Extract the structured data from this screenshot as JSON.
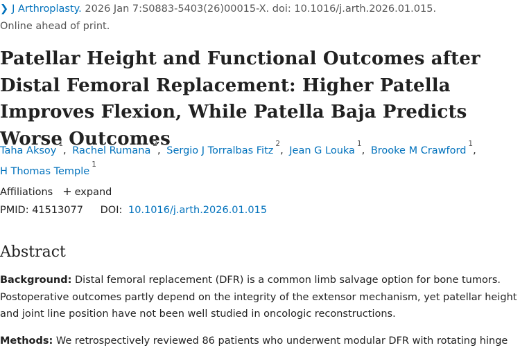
{
  "citation": {
    "journal": "J Arthroplasty.",
    "details": "2026 Jan 7:S0883-5403(26)00015-X. doi: 10.1016/j.arth.2026.01.015.",
    "status": "Online ahead of print."
  },
  "title": "Patellar Height and Functional Outcomes after Distal Femoral Replacement: Higher Patella Improves Flexion, While Patella Baja Predicts Worse Outcomes",
  "authors": [
    {
      "name": "Taha Aksoy",
      "aff": "1"
    },
    {
      "name": "Rachel Rumana",
      "aff": "2"
    },
    {
      "name": "Sergio J Torralbas Fitz",
      "aff": "2"
    },
    {
      "name": "Jean G Louka",
      "aff": "1"
    },
    {
      "name": "Brooke M Crawford",
      "aff": "1"
    },
    {
      "name": "H Thomas Temple",
      "aff": "1"
    }
  ],
  "affiliations": {
    "label": "Affiliations",
    "expand": "expand"
  },
  "ids": {
    "pmid_label": "PMID:",
    "pmid": "41513077",
    "doi_label": "DOI:",
    "doi": "10.1016/j.arth.2026.01.015"
  },
  "abstract": {
    "heading": "Abstract",
    "background_label": "Background:",
    "background_text": "Distal femoral replacement (DFR) is a common limb salvage option for bone tumors. Postoperative outcomes partly depend on the integrity of the extensor mechanism, yet patellar height and joint line position have not been well studied in oncologic reconstructions.",
    "methods_label": "Methods:",
    "methods_text": "We retrospectively reviewed 86 patients who underwent modular DFR with rotating hinge"
  }
}
